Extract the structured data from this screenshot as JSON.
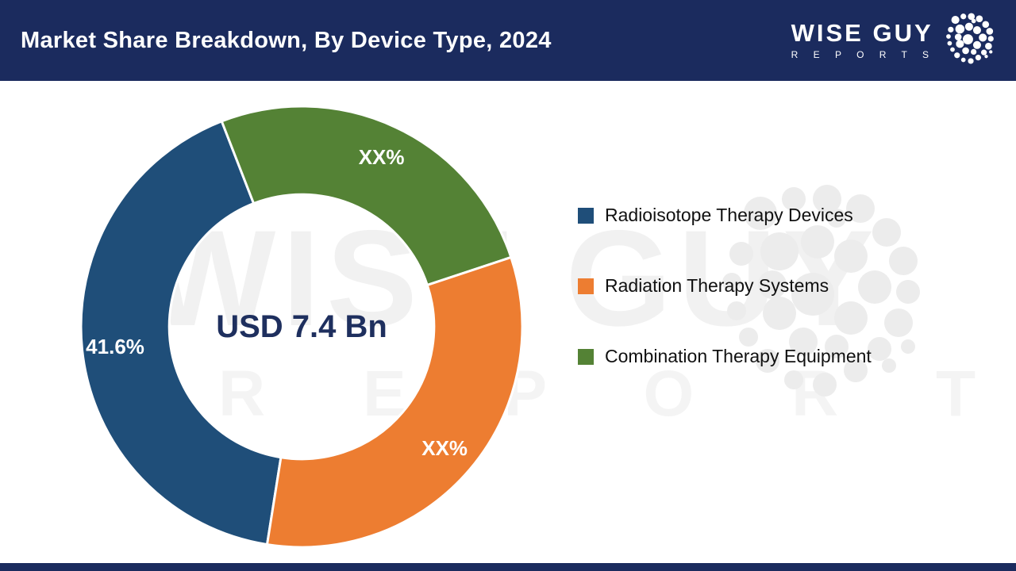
{
  "header": {
    "title": "Market Share Breakdown, By Device Type, 2024",
    "brand": {
      "line1": "WISE GUY",
      "line2": "R E P O R T S"
    }
  },
  "watermark": {
    "line1": "WISE GUY",
    "line2": "R E P O R T S"
  },
  "chart_data": {
    "type": "donut",
    "title": "Market Share Breakdown, By Device Type, 2024",
    "center_label": "USD 7.4 Bn",
    "legend_position": "right",
    "inner_radius_ratio": 0.6,
    "start_angle_deg": 189,
    "draw_order": [
      0,
      2,
      1
    ],
    "segments": [
      {
        "label": "Radioisotope Therapy Devices",
        "value_label": "41.6%",
        "percent": 41.6,
        "color": "#1F4E79"
      },
      {
        "label": "Radiation Therapy Systems",
        "value_label": "XX%",
        "percent": 32.6,
        "color": "#ED7D31"
      },
      {
        "label": "Combination Therapy Equipment",
        "value_label": "XX%",
        "percent": 25.8,
        "color": "#548235"
      }
    ]
  }
}
